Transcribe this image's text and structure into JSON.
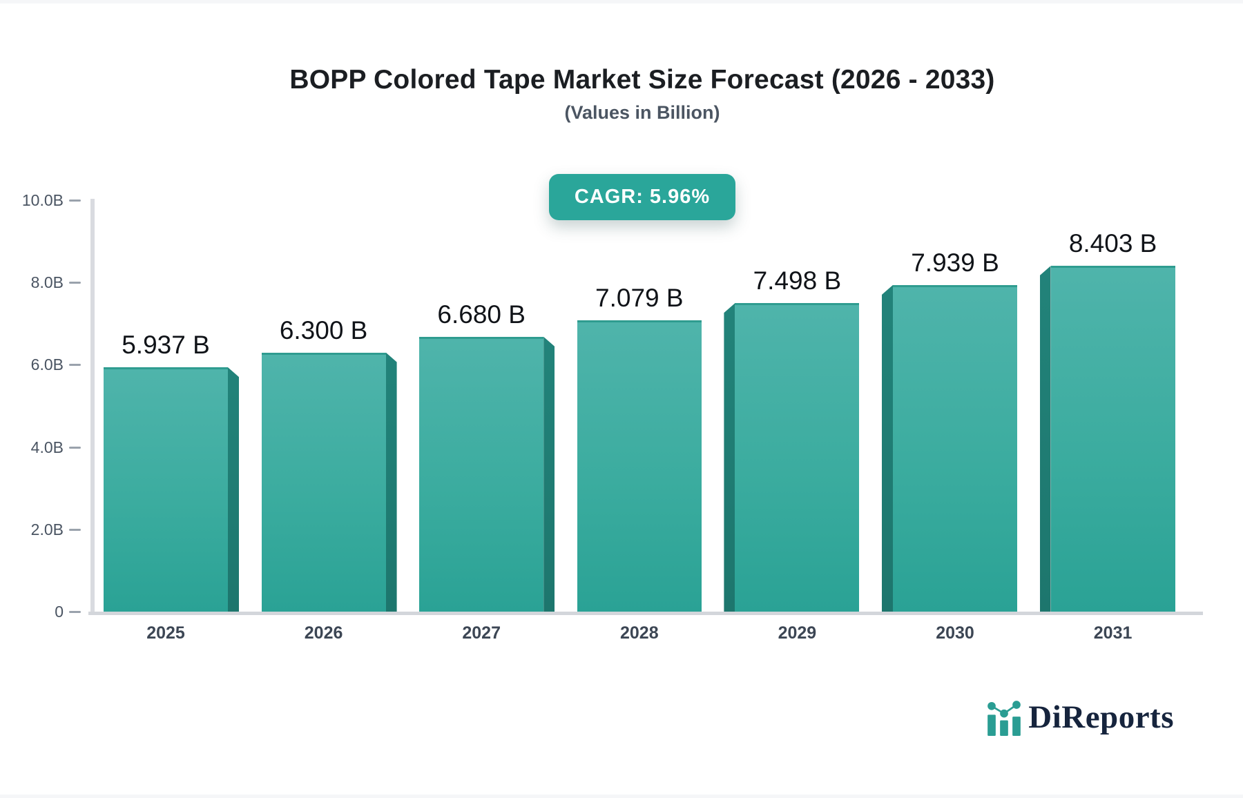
{
  "title": "BOPP Colored Tape Market Size Forecast (2026 - 2033)",
  "subtitle": "(Values in Billion)",
  "badge": {
    "label": "CAGR: 5.96%"
  },
  "chart_data": {
    "type": "bar",
    "title": "BOPP Colored Tape Market Size Forecast (2026 - 2033)",
    "subtitle": "(Values in Billion)",
    "xlabel": "",
    "ylabel": "",
    "categories": [
      "2025",
      "2026",
      "2027",
      "2028",
      "2029",
      "2030",
      "2031"
    ],
    "values": [
      5.937,
      6.3,
      6.68,
      7.079,
      7.498,
      7.939,
      8.403
    ],
    "bar_labels": [
      "5.937 B",
      "6.300 B",
      "6.680 B",
      "7.079 B",
      "7.498 B",
      "7.939 B",
      "8.403 B"
    ],
    "ylim": [
      0,
      10
    ],
    "y_ticks": [
      {
        "value": 0,
        "label": "0"
      },
      {
        "value": 2,
        "label": "2.0B"
      },
      {
        "value": 4,
        "label": "4.0B"
      },
      {
        "value": 6,
        "label": "6.0B"
      },
      {
        "value": 8,
        "label": "8.0B"
      },
      {
        "value": 10,
        "label": "10.0B"
      }
    ],
    "grid": false,
    "legend": false,
    "annotations": [
      "CAGR: 5.96%"
    ],
    "colors": {
      "bar_face_top": "#4fb4ab",
      "bar_face_bottom": "#2aa295",
      "bar_side": "#1f7d73",
      "badge_bg": "#2aa69a",
      "badge_text": "#ffffff",
      "axis_line": "#d9dbe0",
      "tick_label": "#4a5462",
      "value_label": "#101318",
      "category_label": "#3c4654"
    }
  },
  "logo": {
    "text": "DiReports",
    "icon": "bar-line-chart-logomark",
    "icon_color": "#2a9d93",
    "text_color": "#16243d"
  }
}
